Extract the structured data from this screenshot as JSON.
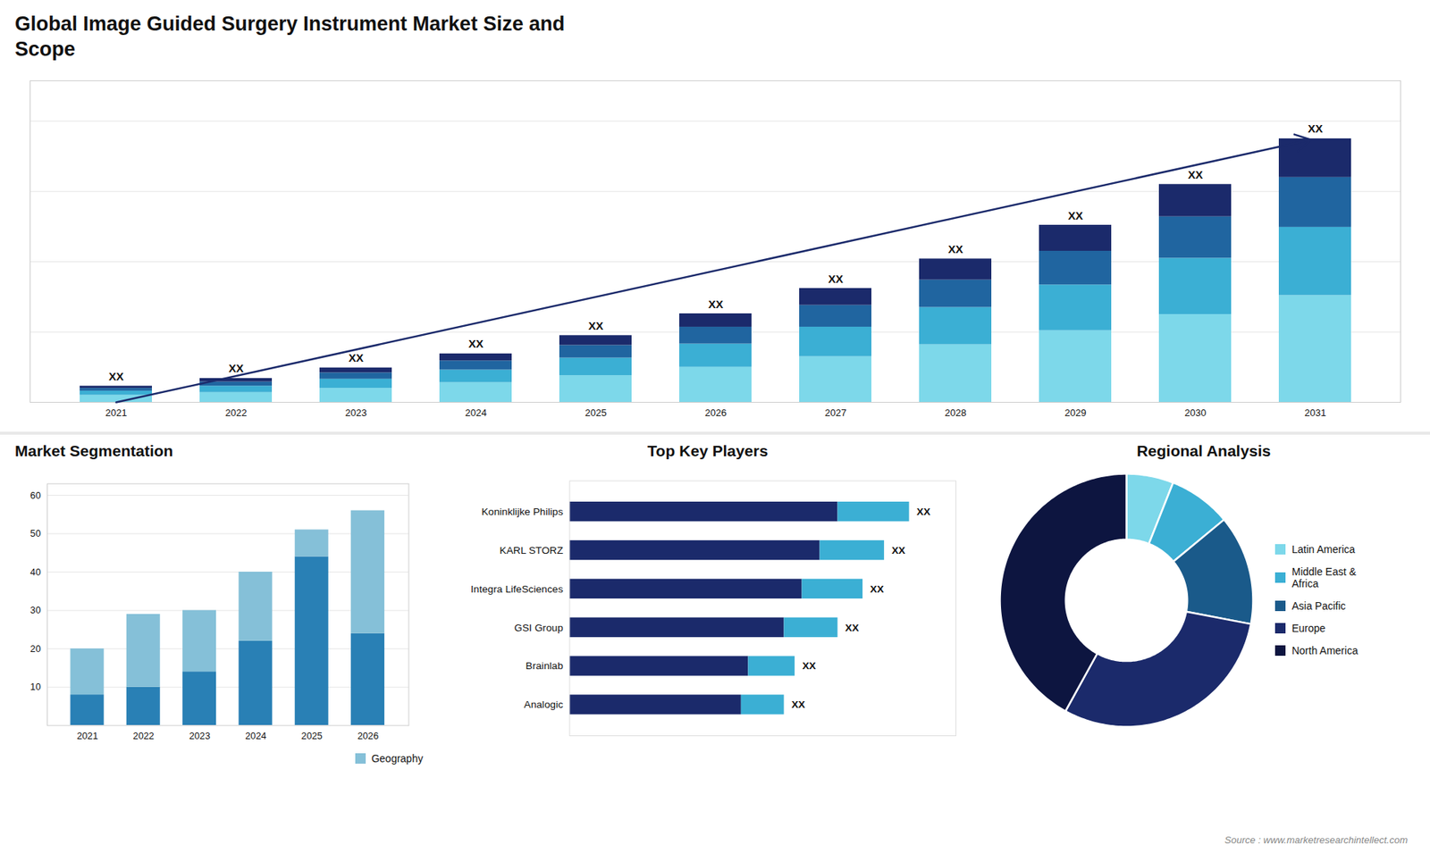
{
  "chart_data": [
    {
      "type": "bar",
      "title": "Global Image Guided Surgery Instrument Market Size and\nScope",
      "stacked": true,
      "categories": [
        "2021",
        "2022",
        "2023",
        "2024",
        "2025",
        "2026",
        "2027",
        "2028",
        "2029",
        "2030",
        "2031"
      ],
      "series": [
        {
          "color": "#7dd8ea",
          "values": [
            1.0,
            1.4,
            2.0,
            2.8,
            3.8,
            5.0,
            6.5,
            8.2,
            10.2,
            12.5,
            15.2
          ]
        },
        {
          "color": "#3bafd4",
          "values": [
            0.6,
            0.9,
            1.3,
            1.8,
            2.5,
            3.3,
            4.2,
            5.3,
            6.5,
            8.0,
            9.7
          ]
        },
        {
          "color": "#2065a0",
          "values": [
            0.4,
            0.6,
            0.9,
            1.3,
            1.8,
            2.4,
            3.1,
            3.9,
            4.8,
            5.9,
            7.1
          ]
        },
        {
          "color": "#1b2a6b",
          "values": [
            0.3,
            0.5,
            0.7,
            1.0,
            1.4,
            1.9,
            2.4,
            3.0,
            3.7,
            4.6,
            5.5
          ]
        }
      ],
      "ylim": [
        0,
        45.75
      ],
      "yticks": [
        0,
        10,
        20,
        30,
        40
      ],
      "grid": true,
      "tick_labels": "x",
      "annotations": [
        {
          "x": "2021",
          "text": "XX"
        },
        {
          "x": "2022",
          "text": "XX"
        },
        {
          "x": "2023",
          "text": "XX"
        },
        {
          "x": "2024",
          "text": "XX"
        },
        {
          "x": "2025",
          "text": "XX"
        },
        {
          "x": "2026",
          "text": "XX"
        },
        {
          "x": "2027",
          "text": "XX"
        },
        {
          "x": "2028",
          "text": "XX"
        },
        {
          "x": "2029",
          "text": "XX"
        },
        {
          "x": "2030",
          "text": "XX"
        },
        {
          "x": "2031",
          "text": "XX"
        }
      ]
    },
    {
      "type": "bar",
      "title": "Market Segmentation",
      "stacked": true,
      "categories": [
        "2021",
        "2022",
        "2023",
        "2024",
        "2025",
        "2026"
      ],
      "series": [
        {
          "color": "#2980b5",
          "values": [
            8,
            10,
            14,
            22,
            44,
            24
          ]
        },
        {
          "name": "Geography",
          "color": "#85c0d8",
          "values": [
            12,
            19,
            16,
            18,
            7,
            32
          ]
        }
      ],
      "ylim": [
        0,
        63
      ],
      "yticks": [
        10,
        20,
        30,
        40,
        50,
        60
      ],
      "grid": true,
      "legend": "lower right"
    },
    {
      "type": "bar",
      "title": "Top Key Players",
      "orientation": "horizontal",
      "stacked": true,
      "categories": [
        "Koninklijke Philips",
        "KARL STORZ",
        "Integra LifeSciences",
        "GSI Group",
        "Brainlab",
        "Analogic"
      ],
      "series": [
        {
          "color": "#1b2a6b",
          "values": [
            75,
            70,
            65,
            60,
            50,
            48
          ]
        },
        {
          "color": "#3bafd4",
          "values": [
            20,
            18,
            17,
            15,
            13,
            12
          ]
        }
      ],
      "xlim": [
        0,
        108
      ],
      "tick_labels": "y",
      "annotations": [
        {
          "y": "Koninklijke Philips",
          "text": "XX"
        },
        {
          "y": "KARL STORZ",
          "text": "XX"
        },
        {
          "y": "Integra LifeSciences",
          "text": "XX"
        },
        {
          "y": "GSI Group",
          "text": "XX"
        },
        {
          "y": "Brainlab",
          "text": "XX"
        },
        {
          "y": "Analogic",
          "text": "XX"
        }
      ]
    },
    {
      "type": "pie",
      "title": "Regional Analysis",
      "categories": [
        "Latin America",
        "Middle East &\nAfrica",
        "Asia Pacific",
        "Europe",
        "North America"
      ],
      "values": [
        6,
        8,
        14,
        30,
        42
      ],
      "colors": [
        "#7dd8ea",
        "#3bafd4",
        "#1a5a8a",
        "#1b2a6b",
        "#0d1540"
      ],
      "legend": "right",
      "annotations": [
        {
          "text": "Source : www.marketresearchintellect.com"
        }
      ]
    }
  ]
}
